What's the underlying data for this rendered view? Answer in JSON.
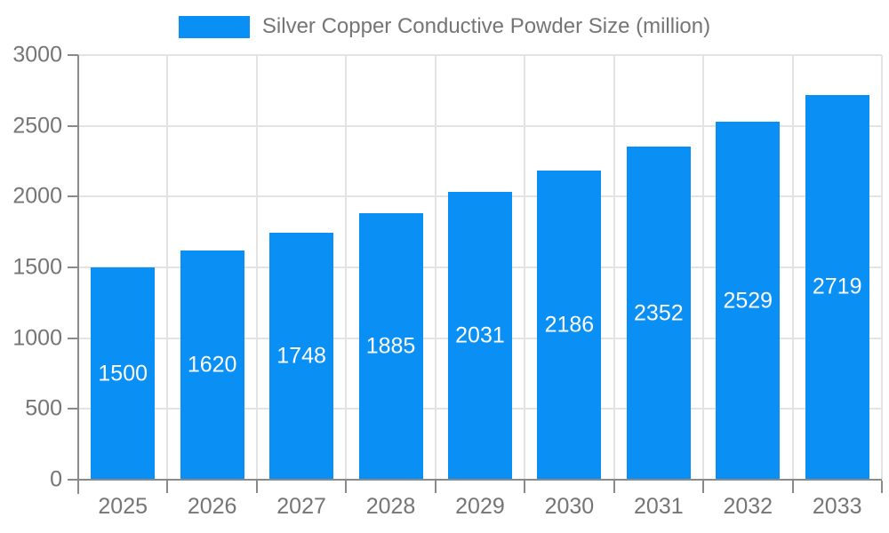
{
  "chart_data": {
    "type": "bar",
    "title": "Silver Copper Conductive Powder Size (million)",
    "categories": [
      "2025",
      "2026",
      "2027",
      "2028",
      "2029",
      "2030",
      "2031",
      "2032",
      "2033"
    ],
    "values": [
      1500,
      1620,
      1748,
      1885,
      2031,
      2186,
      2352,
      2529,
      2719
    ],
    "xlabel": "",
    "ylabel": "",
    "ylim": [
      0,
      3000
    ],
    "yticks": [
      0,
      500,
      1000,
      1500,
      2000,
      2500,
      3000
    ],
    "grid": true,
    "legend_position": "top-center",
    "bar_labels_inside": true,
    "colors": {
      "bar": "#0a8ff5",
      "grid": "#e3e3e3",
      "axis": "#8a8a8a",
      "tick_text": "#757575",
      "legend_text": "#757575",
      "bar_label_text": "#ffffff",
      "background": "#ffffff"
    }
  }
}
